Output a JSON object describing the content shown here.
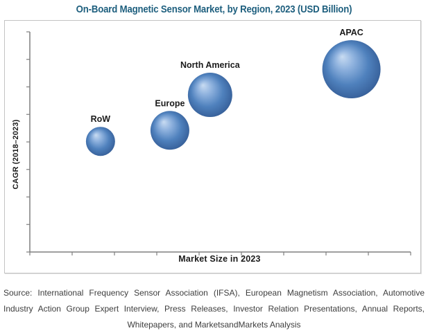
{
  "title": {
    "text": "On-Board Magnetic Sensor Market, by Region, 2023 (USD Billion)",
    "color": "#1E5F7E"
  },
  "chart_data": {
    "type": "scatter",
    "subtype": "bubble",
    "title": "On-Board Magnetic Sensor Market, by Region, 2023 (USD Billion)",
    "xlabel": "Market Size in 2023",
    "ylabel": "CAGR (2018–2023)",
    "x_axis": {
      "min": 0,
      "max": 9,
      "tick_count": 10,
      "tick_labels_visible": false
    },
    "y_axis": {
      "min": 0,
      "max": 8,
      "tick_count": 9,
      "tick_labels_visible": false
    },
    "legend": "none",
    "grid": false,
    "points": [
      {
        "label": "RoW",
        "x": 1.67,
        "y": 4.02,
        "bubble_radius_px": 21
      },
      {
        "label": "Europe",
        "x": 3.31,
        "y": 4.42,
        "bubble_radius_px": 28
      },
      {
        "label": "North America",
        "x": 4.26,
        "y": 5.71,
        "bubble_radius_px": 32
      },
      {
        "label": "APAC",
        "x": 7.6,
        "y": 6.64,
        "bubble_radius_px": 42
      }
    ],
    "bubble_color": "#4F81BD",
    "bubble_gradient": [
      "#C9DCF2",
      "#8FB2DE",
      "#4F81BD",
      "#3A649E",
      "#2B4B72"
    ],
    "axis_color": "#7f7f7f",
    "label_color": "#1a1a1a"
  },
  "source": {
    "text": "Source: International Frequency Sensor Association (IFSA), European Magnetism Association, Automotive Industry Action Group Expert Interview, Press Releases, Investor Relation Presentations, Annual Reports, Whitepapers, and MarketsandMarkets Analysis"
  }
}
